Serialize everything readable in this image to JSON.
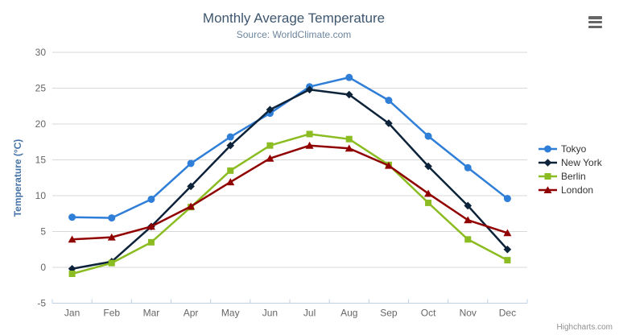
{
  "header": {
    "title": "Monthly Average Temperature",
    "subtitle": "Source: WorldClimate.com"
  },
  "export_menu": {
    "icon": "hamburger-icon"
  },
  "credits": "Highcharts.com",
  "chart_data": {
    "type": "line",
    "title": "Monthly Average Temperature",
    "subtitle": "Source: WorldClimate.com",
    "xlabel": "",
    "ylabel": "Temperature (°C)",
    "categories": [
      "Jan",
      "Feb",
      "Mar",
      "Apr",
      "May",
      "Jun",
      "Jul",
      "Aug",
      "Sep",
      "Oct",
      "Nov",
      "Dec"
    ],
    "yticks": [
      -5,
      0,
      5,
      10,
      15,
      20,
      25,
      30
    ],
    "ylim": [
      -5,
      30
    ],
    "grid": "horizontal",
    "legend_position": "right",
    "series": [
      {
        "name": "Tokyo",
        "color": "#2f7ed8",
        "marker": "circle",
        "values": [
          7.0,
          6.9,
          9.5,
          14.5,
          18.2,
          21.5,
          25.2,
          26.5,
          23.3,
          18.3,
          13.9,
          9.6
        ]
      },
      {
        "name": "New York",
        "color": "#0d233a",
        "marker": "diamond",
        "values": [
          -0.2,
          0.8,
          5.7,
          11.3,
          17.0,
          22.0,
          24.8,
          24.1,
          20.1,
          14.1,
          8.6,
          2.5
        ]
      },
      {
        "name": "Berlin",
        "color": "#8bbc21",
        "marker": "square",
        "values": [
          -0.9,
          0.6,
          3.5,
          8.4,
          13.5,
          17.0,
          18.6,
          17.9,
          14.3,
          9.0,
          3.9,
          1.0
        ]
      },
      {
        "name": "London",
        "color": "#910000",
        "marker": "triangle",
        "values": [
          3.9,
          4.2,
          5.7,
          8.5,
          11.9,
          15.2,
          17.0,
          16.6,
          14.2,
          10.3,
          6.6,
          4.8
        ]
      }
    ],
    "colors": {
      "grid": "#D8D8D8",
      "axis_line": "#C0D0E0",
      "tick_label": "#666666",
      "axis_title": "#4572A7",
      "title": "#3E576F",
      "subtitle": "#6D869F",
      "legend_text": "#333333",
      "credits": "#909090"
    }
  }
}
